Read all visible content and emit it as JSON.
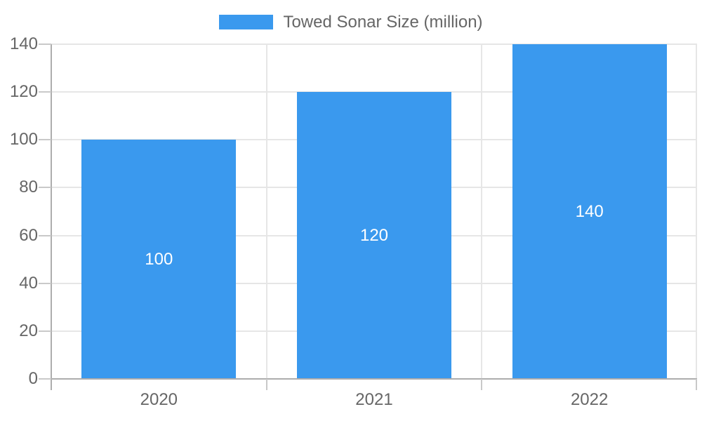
{
  "chart_data": {
    "type": "bar",
    "title": "",
    "legend_label": "Towed Sonar Size (million)",
    "legend_position": "top",
    "categories": [
      "2020",
      "2021",
      "2022"
    ],
    "values": [
      100,
      120,
      140
    ],
    "data_labels": [
      "100",
      "120",
      "140"
    ],
    "xlabel": "",
    "ylabel": "",
    "ylim": [
      0,
      140
    ],
    "yticks": [
      0,
      20,
      40,
      60,
      80,
      100,
      120,
      140
    ],
    "grid": true,
    "colors": {
      "bar": "#3A99EE",
      "axis_line": "#ADADAD",
      "gridline": "#E6E6E6",
      "tick_mark": "#C9C9C9",
      "axis_text": "#666666",
      "legend_text": "#666666",
      "bar_label_text": "#FFFFFF",
      "background": "#FFFFFF"
    }
  }
}
